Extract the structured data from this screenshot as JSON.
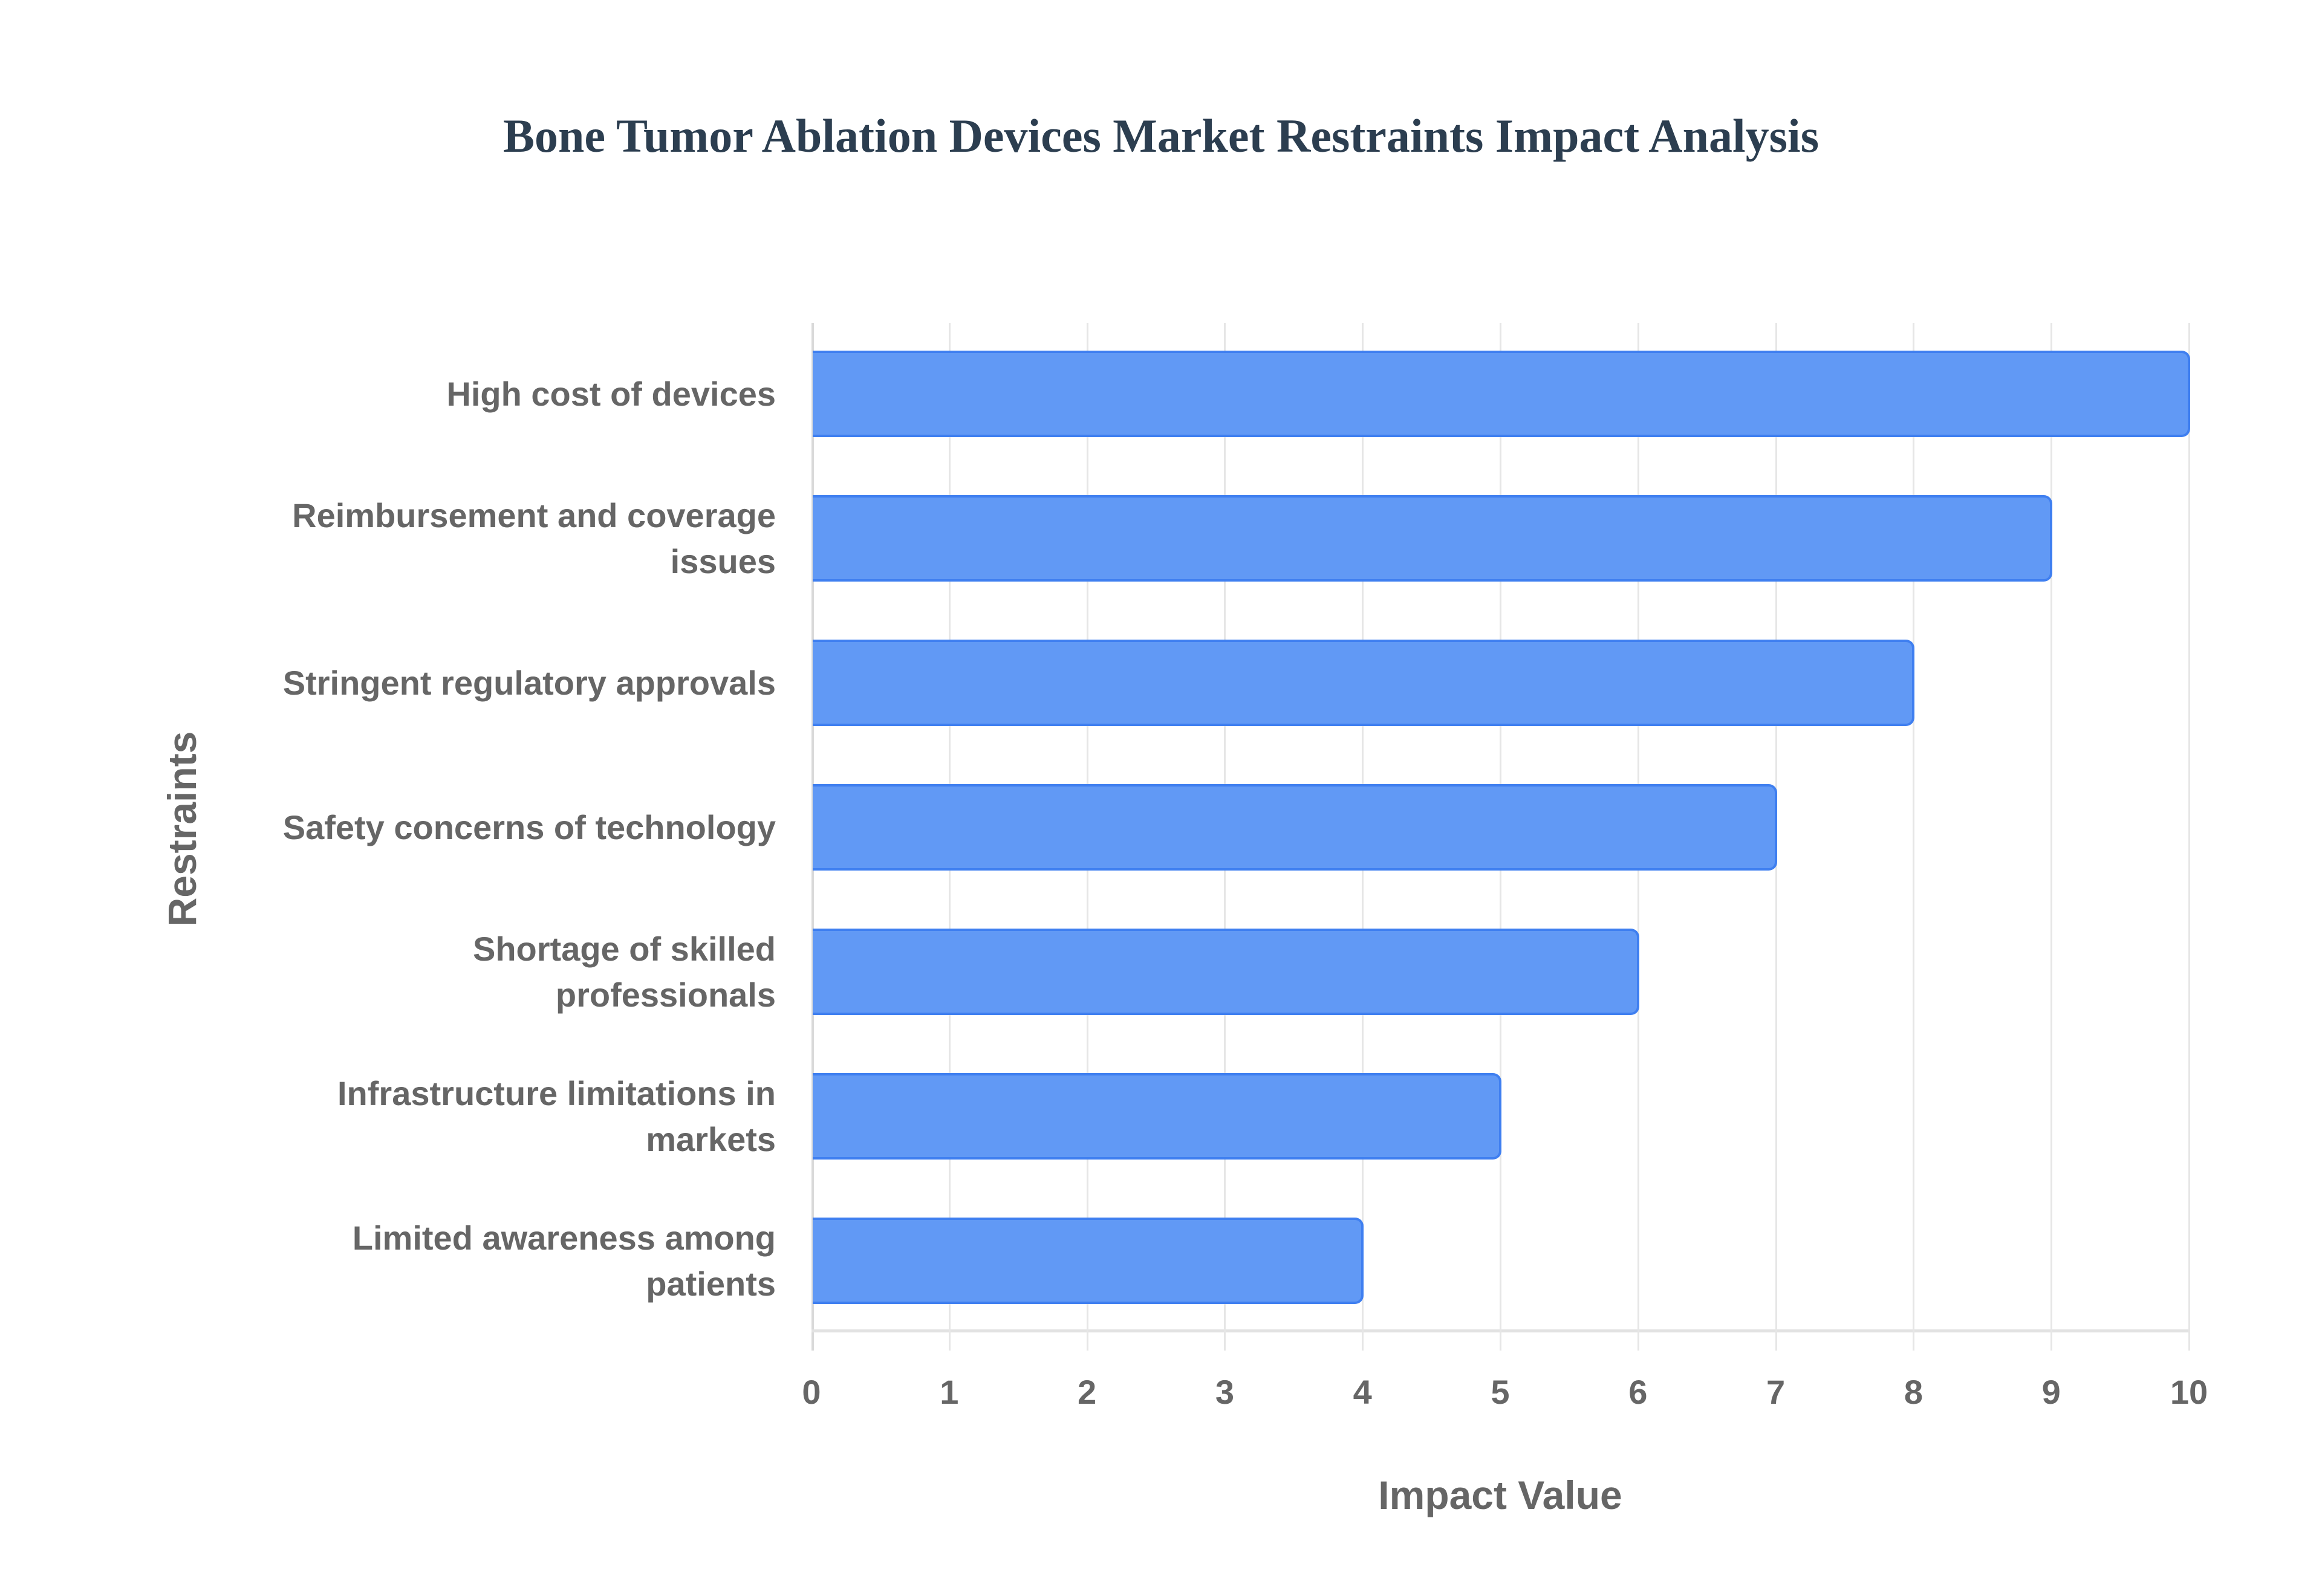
{
  "title": "Bone Tumor Ablation Devices Market Restraints Impact Analysis",
  "x_axis": {
    "label": "Impact Value",
    "ticks": [
      "0",
      "1",
      "2",
      "3",
      "4",
      "5",
      "6",
      "7",
      "8",
      "9",
      "10"
    ]
  },
  "y_axis": {
    "label": "Restraints"
  },
  "categories": [
    {
      "line1": "High cost of devices",
      "line2": ""
    },
    {
      "line1": "Reimbursement and coverage",
      "line2": "issues"
    },
    {
      "line1": "Stringent regulatory approvals",
      "line2": ""
    },
    {
      "line1": "Safety concerns of technology",
      "line2": ""
    },
    {
      "line1": "Shortage of skilled",
      "line2": "professionals"
    },
    {
      "line1": "Infrastructure limitations in",
      "line2": "markets"
    },
    {
      "line1": "Limited awareness among",
      "line2": "patients"
    }
  ],
  "colors": {
    "bar_fill": "#6199f5",
    "bar_border": "#3f7ff0",
    "title": "#2c3e50",
    "text": "#666666"
  },
  "chart_data": {
    "type": "bar",
    "orientation": "horizontal",
    "title": "Bone Tumor Ablation Devices Market Restraints Impact Analysis",
    "xlabel": "Impact Value",
    "ylabel": "Restraints",
    "categories": [
      "High cost of devices",
      "Reimbursement and coverage issues",
      "Stringent regulatory approvals",
      "Safety concerns of technology",
      "Shortage of skilled professionals",
      "Infrastructure limitations in markets",
      "Limited awareness among patients"
    ],
    "values": [
      10,
      9,
      8,
      7,
      6,
      5,
      4
    ],
    "xlim": [
      0,
      10
    ],
    "x_ticks": [
      0,
      1,
      2,
      3,
      4,
      5,
      6,
      7,
      8,
      9,
      10
    ],
    "grid": true,
    "legend": false
  }
}
